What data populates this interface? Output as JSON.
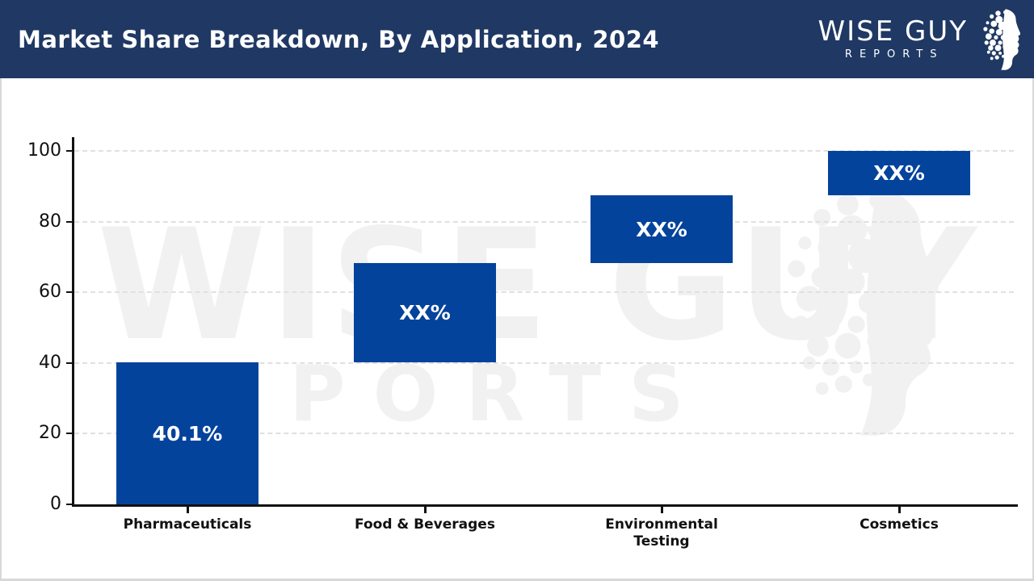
{
  "header": {
    "title": "Market Share Breakdown, By Application, 2024",
    "logo": {
      "name": "WISE GUY",
      "tagline": "REPORTS"
    }
  },
  "watermark": {
    "line1": "WISE GUY",
    "line2": "REPORTS"
  },
  "colors": {
    "header_bg": "#1F3864",
    "bar": "#04439C",
    "bar_label_text": "#FFFFFF",
    "gridline": "#E0E0E0",
    "axis": "#111111",
    "watermark": "#F1F1F1",
    "page_border": "#D8D8D8"
  },
  "chart_data": {
    "type": "bar",
    "subtype": "floating_segment_breakdown",
    "title": "Market Share Breakdown, By Application, 2024",
    "categories": [
      "Pharmaceuticals",
      "Food & Beverages",
      "Environmental Testing",
      "Cosmetics"
    ],
    "segments": [
      {
        "category": "Pharmaceuticals",
        "start": 0,
        "end": 40.1,
        "label": "40.1%"
      },
      {
        "category": "Food & Beverages",
        "start": 40.1,
        "end": 68.3,
        "label": "XX%"
      },
      {
        "category": "Environmental Testing",
        "start": 68.3,
        "end": 87.4,
        "label": "XX%"
      },
      {
        "category": "Cosmetics",
        "start": 87.4,
        "end": 100,
        "label": "XX%"
      }
    ],
    "xlabel": "",
    "ylabel": "",
    "ylim": [
      0,
      100
    ],
    "yticks": [
      0,
      20,
      40,
      60,
      80,
      100
    ],
    "grid": "horizontal-dashed",
    "legend": "none",
    "bar_color": "#04439C",
    "value_label_color": "#FFFFFF"
  }
}
